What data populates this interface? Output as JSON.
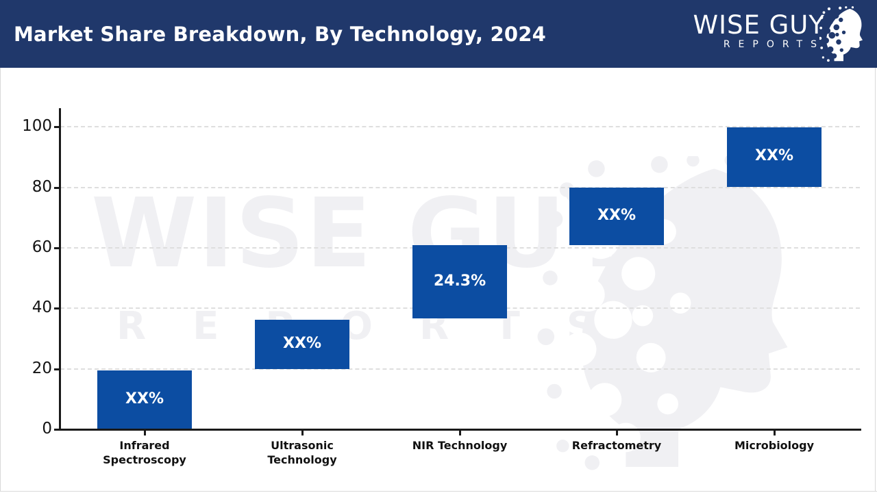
{
  "header": {
    "title": "Market Share Breakdown, By Technology, 2024",
    "logo": {
      "name": "WISE GUY",
      "sub": "REPORTS"
    }
  },
  "watermark": {
    "line1": "WISE GUY",
    "line2": "REPORTS"
  },
  "colors": {
    "header_bg": "#20386B",
    "bar": "#0C4DA2",
    "bar_label": "#FFFFFF",
    "grid": "#DEDEDE",
    "axis": "#1A1A1A",
    "watermark": "#F0F0F3"
  },
  "chart_data": {
    "type": "bar",
    "subtype": "waterfall",
    "title": "Market Share Breakdown, By Technology, 2024",
    "xlabel": "",
    "ylabel": "",
    "ylim": [
      0,
      106
    ],
    "y_ticks": [
      0,
      20,
      40,
      60,
      80,
      100
    ],
    "grid": "horizontal dashed",
    "legend": "none",
    "categories": [
      "Infrared Spectroscopy",
      "Ultrasonic Technology",
      "NIR Technology",
      "Refractometry",
      "Microbiology"
    ],
    "segments": [
      {
        "category": "Infrared Spectroscopy",
        "label_lines": [
          "Infrared",
          "Spectroscopy"
        ],
        "start": 0,
        "end": 19.4,
        "value_label": "XX%"
      },
      {
        "category": "Ultrasonic Technology",
        "label_lines": [
          "Ultrasonic",
          "Technology"
        ],
        "start": 20.0,
        "end": 36.3,
        "value_label": "XX%"
      },
      {
        "category": "NIR Technology",
        "label_lines": [
          "NIR Technology"
        ],
        "start": 36.6,
        "end": 60.9,
        "value_label": "24.3%"
      },
      {
        "category": "Refractometry",
        "label_lines": [
          "Refractometry"
        ],
        "start": 60.9,
        "end": 80.0,
        "value_label": "XX%"
      },
      {
        "category": "Microbiology",
        "label_lines": [
          "Microbiology"
        ],
        "start": 80.2,
        "end": 99.8,
        "value_label": "XX%"
      }
    ]
  }
}
